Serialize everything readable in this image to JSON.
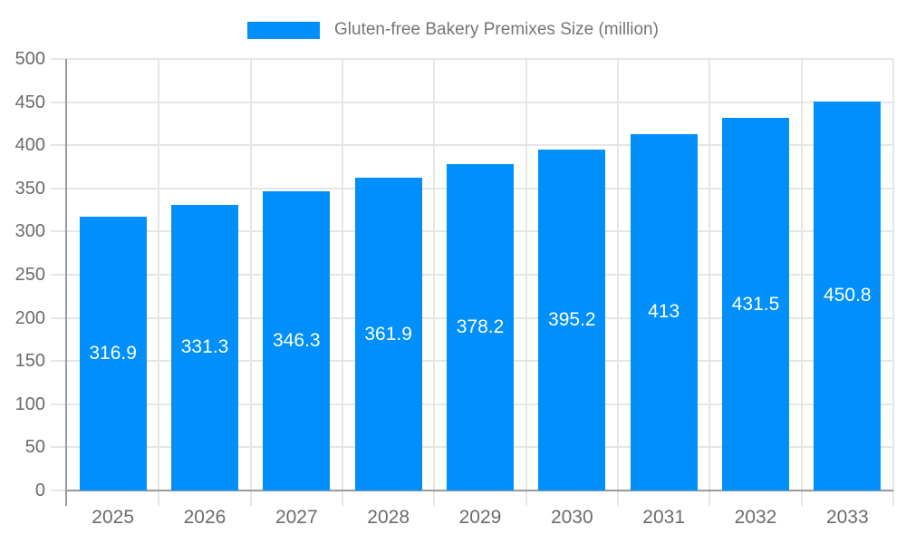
{
  "chart_data": {
    "type": "bar",
    "title": "",
    "legend": "Gluten-free Bakery Premixes Size (million)",
    "legend_position": "top-center",
    "categories": [
      "2025",
      "2026",
      "2027",
      "2028",
      "2029",
      "2030",
      "2031",
      "2032",
      "2033"
    ],
    "values": [
      316.9,
      331.3,
      346.3,
      361.9,
      378.2,
      395.2,
      413,
      431.5,
      450.8
    ],
    "value_labels": [
      "316.9",
      "331.3",
      "346.3",
      "361.9",
      "378.2",
      "395.2",
      "413",
      "431.5",
      "450.8"
    ],
    "xlabel": "",
    "ylabel": "",
    "ylim": [
      0,
      500
    ],
    "ytick_step": 50,
    "yticks": [
      0,
      50,
      100,
      150,
      200,
      250,
      300,
      350,
      400,
      450,
      500
    ],
    "grid": true,
    "value_label_position": "inside-center",
    "colors": {
      "bar": "#008ffb",
      "grid": "#e6e6e6",
      "axis": "#9a9a9a",
      "label_text": "#6b6b6b",
      "legend_text": "#757575",
      "bar_label": "#ffffff"
    }
  }
}
